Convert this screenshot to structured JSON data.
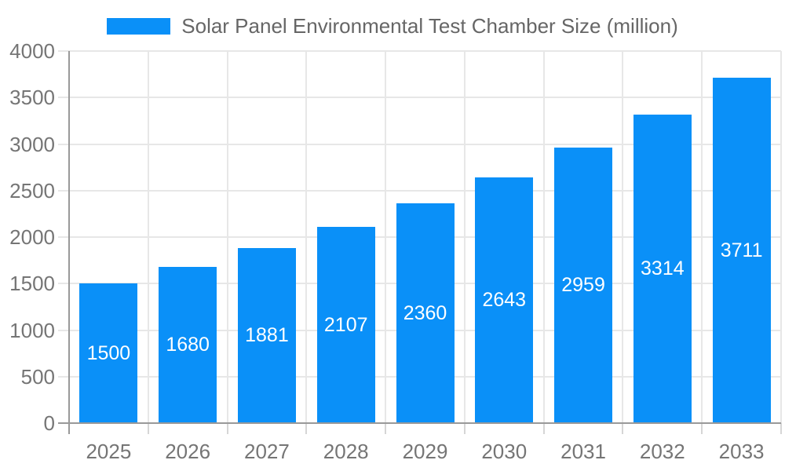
{
  "chart_data": {
    "type": "bar",
    "title": "Solar Panel Environmental Test Chamber Size (million)",
    "categories": [
      "2025",
      "2026",
      "2027",
      "2028",
      "2029",
      "2030",
      "2031",
      "2032",
      "2033"
    ],
    "values": [
      1500,
      1680,
      1881,
      2107,
      2360,
      2643,
      2959,
      3314,
      3711
    ],
    "xlabel": "",
    "ylabel": "",
    "ylim": [
      0,
      4000
    ],
    "ytick_step": 500,
    "yticks": [
      0,
      500,
      1000,
      1500,
      2000,
      2500,
      3000,
      3500,
      4000
    ],
    "grid": true,
    "legend_position": "top-center",
    "bar_label_position": "inside-center",
    "colors": {
      "bar": "#0a90f8",
      "bar_label": "#ffffff",
      "background": "#ffffff",
      "gridline": "#e7e7e7",
      "x_tick": "#d6d6d6",
      "axis_line": "#999999",
      "axis_label": "#757575",
      "legend_text": "#666666"
    }
  }
}
